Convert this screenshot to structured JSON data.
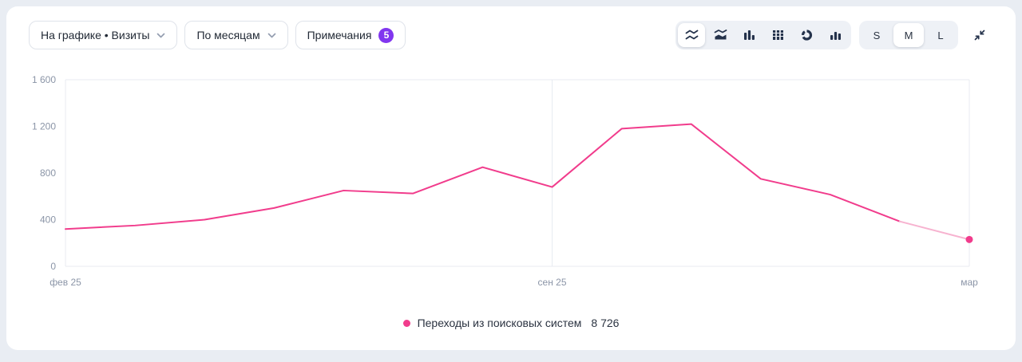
{
  "controls": {
    "metric_dropdown": {
      "label": "На графике • Визиты"
    },
    "grouping_dropdown": {
      "label": "По месяцам"
    },
    "notes_button": {
      "label": "Примечания",
      "badge": "5"
    }
  },
  "toolbar": {
    "chart_type_icons": [
      "multiline-chart-icon",
      "stacked-area-chart-icon",
      "bar-chart-icon",
      "stacked-columns-chart-icon",
      "pie-chart-icon",
      "histogram-chart-icon"
    ],
    "selected_chart_type": "multiline-chart",
    "sizes": {
      "options": [
        "S",
        "M",
        "L"
      ],
      "selected": "M"
    }
  },
  "legend": {
    "label": "Переходы из поисковых систем",
    "value": "8 726"
  },
  "chart_data": {
    "type": "line",
    "title": "",
    "xlabel": "",
    "ylabel": "",
    "ylim": [
      0,
      1600
    ],
    "y_ticks": [
      0,
      400,
      800,
      1200,
      1600
    ],
    "y_tick_labels": [
      "0",
      "400",
      "800",
      "1 200",
      "1 600"
    ],
    "x_axis_labels": [
      {
        "text": "фев 25",
        "index": 0,
        "anchor": "middle"
      },
      {
        "text": "сен 25",
        "index": 7,
        "anchor": "middle"
      },
      {
        "text": "мар",
        "index": 13,
        "anchor": "middle"
      }
    ],
    "vertical_gridline_indices": [
      7,
      13
    ],
    "grid_color": "#e8ebf1",
    "legend_position": "bottom",
    "series": [
      {
        "name": "Переходы из поисковых систем",
        "color": "#f13c8c",
        "values": [
          320,
          350,
          400,
          500,
          650,
          625,
          850,
          680,
          1180,
          1220,
          750,
          615,
          385,
          230
        ],
        "total": "8 726"
      }
    ],
    "partial_from_index": 12,
    "partial_color": "#f7b3d0",
    "end_dot": true
  }
}
